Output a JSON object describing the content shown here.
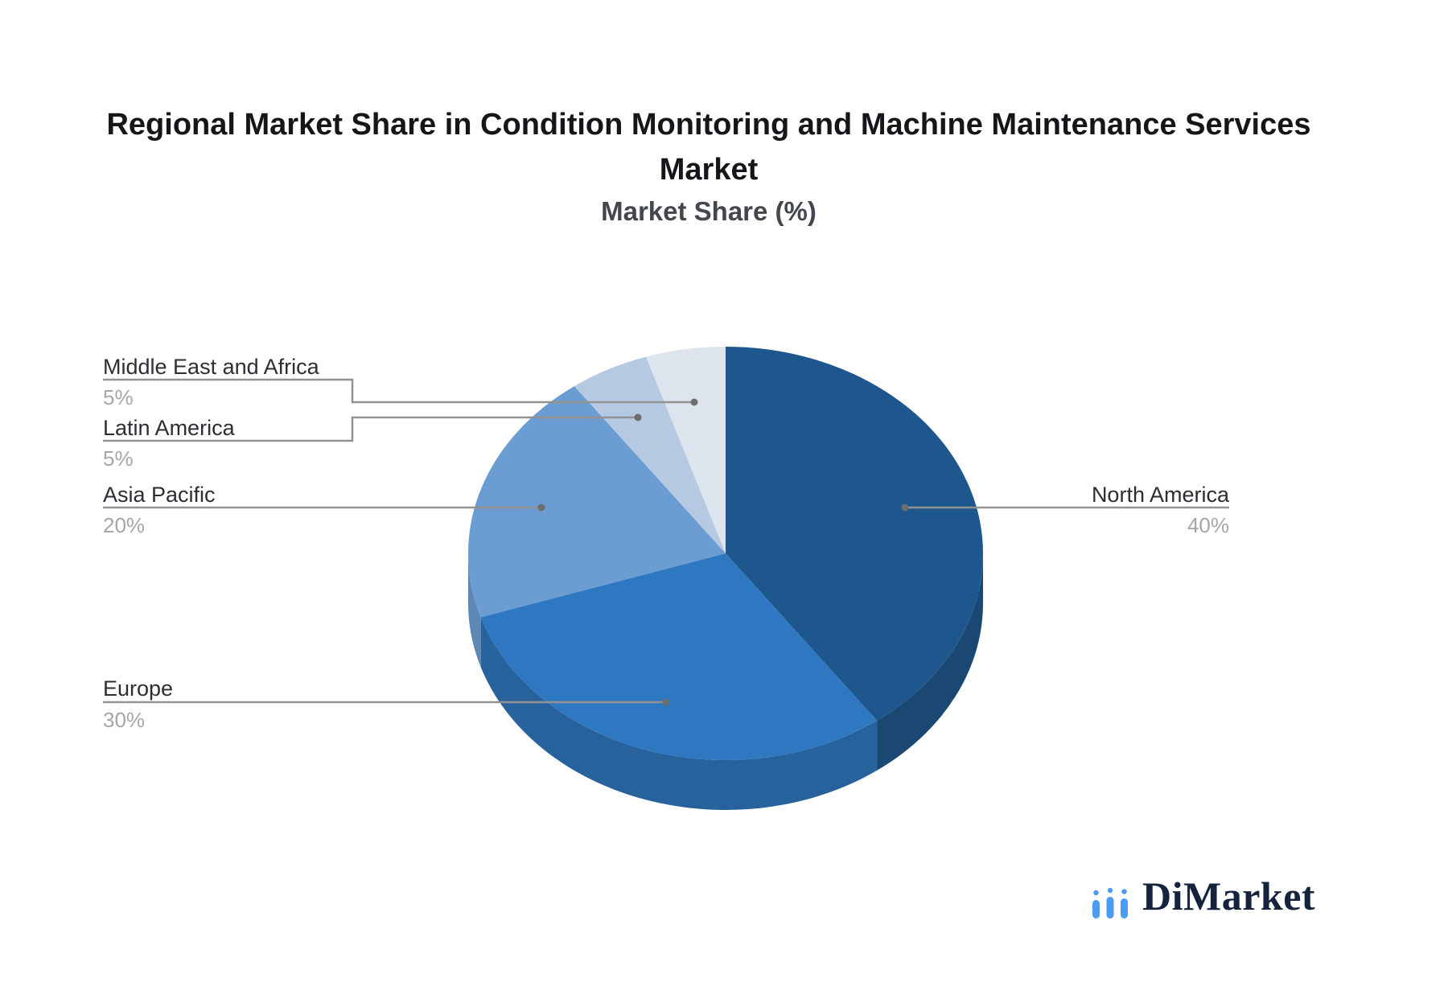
{
  "header": {
    "title_line1": "Regional Market Share in Condition Monitoring and Machine Maintenance Services",
    "title_line2": "Market",
    "subtitle": "Market Share (%)"
  },
  "chart_data": {
    "type": "pie",
    "style": "3d-pie",
    "title": "Regional Market Share in Condition Monitoring and Machine Maintenance Services Market",
    "subtitle": "Market Share (%)",
    "unit": "%",
    "start_angle": "12-o-clock",
    "direction": "clockwise",
    "legend_position": "callout-labels",
    "slices": [
      {
        "name": "North America",
        "value": 40,
        "value_label": "40%",
        "color": "#1d578d",
        "side_color": "#1b4873"
      },
      {
        "name": "Europe",
        "value": 30,
        "value_label": "30%",
        "color": "#2e77c1",
        "side_color": "#27629c"
      },
      {
        "name": "Asia Pacific",
        "value": 20,
        "value_label": "20%",
        "color": "#6b9cd2",
        "side_color": "#5d87b5"
      },
      {
        "name": "Latin America",
        "value": 5,
        "value_label": "5%",
        "color": "#b5cae2",
        "side_color": "#90a3ba"
      },
      {
        "name": "Middle East and Africa",
        "value": 5,
        "value_label": "5%",
        "color": "#dde4ee",
        "side_color": "#b1b8c4"
      }
    ],
    "colors": {
      "leader_line": "#929292",
      "leader_dot": "#6d6d6d",
      "label_text": "#2b2e33",
      "value_text": "#a6a6a6"
    }
  },
  "logo": {
    "text": "DiMarket",
    "mark": "bar-chart-icon"
  }
}
